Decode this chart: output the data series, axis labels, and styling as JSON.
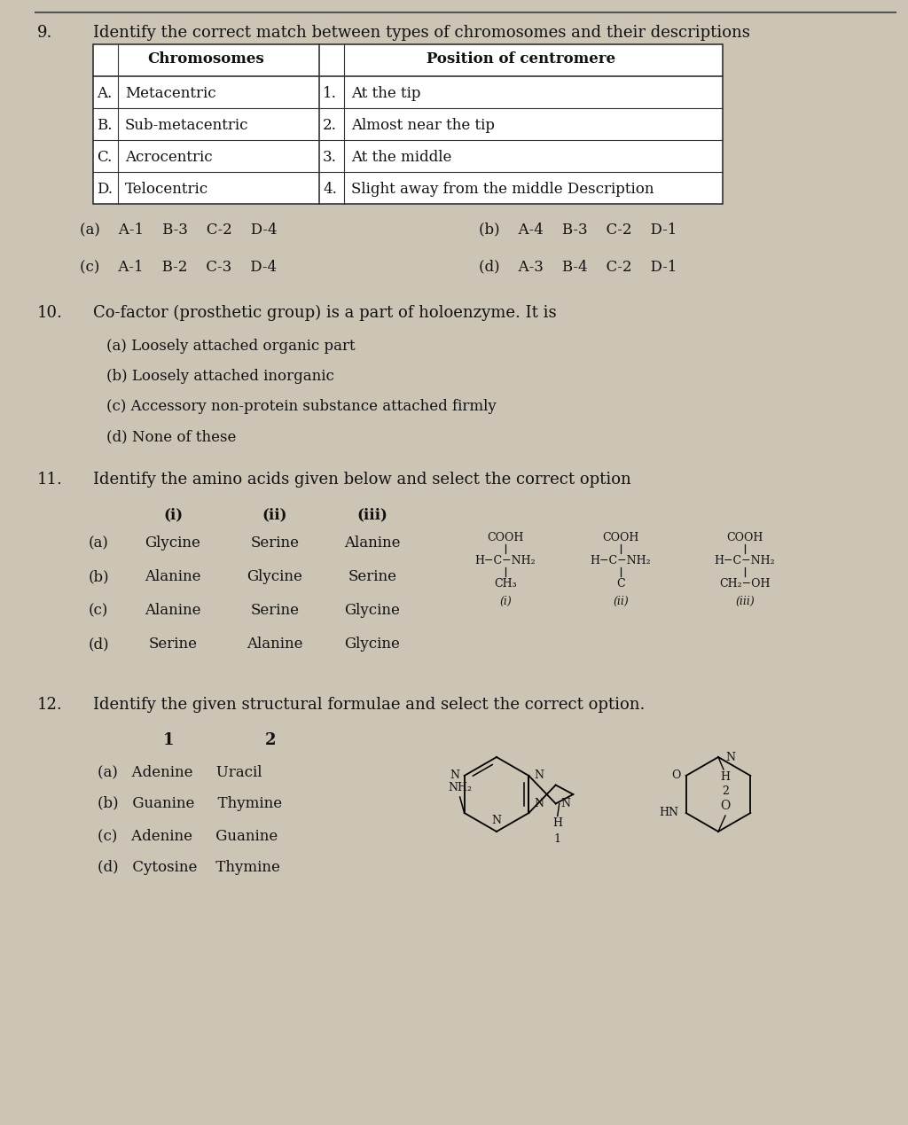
{
  "bg_color": "#ccc4b4",
  "q9_num": "9.",
  "q9_text": "Identify the correct match between types of chromosomes and their descriptions",
  "table_header_left": "Chromosomes",
  "table_header_right": "Position of centromere",
  "table_rows": [
    [
      "A.",
      "Metacentric",
      "1.",
      "At the tip"
    ],
    [
      "B.",
      "Sub-metacentric",
      "2.",
      "Almost near the tip"
    ],
    [
      "C.",
      "Acrocentric",
      "3.",
      "At the middle"
    ],
    [
      "D.",
      "Telocentric",
      "4.",
      "Slight away from the middle Description"
    ]
  ],
  "q9_opt_a": "(a)    A-1    B-3    C-2    D-4",
  "q9_opt_b": "(b)    A-4    B-3    C-2    D-1",
  "q9_opt_c": "(c)    A-1    B-2    C-3    D-4",
  "q9_opt_d": "(d)    A-3    B-4    C-2    D-1",
  "q10_num": "10.",
  "q10_text": "Co-factor (prosthetic group) is a part of holoenzyme. It is",
  "q10_a": "(a) Loosely attached organic part",
  "q10_b": "(b) Loosely attached inorganic",
  "q10_c": "(c) Accessory non-protein substance attached firmly",
  "q10_d": "(d) None of these",
  "q11_num": "11.",
  "q11_text": "Identify the amino acids given below and select the correct option",
  "q11_col_i": "(i)",
  "q11_col_ii": "(ii)",
  "q11_col_iii": "(iii)",
  "q11_a_lbl": "(a)",
  "q11_a_1": "Glycine",
  "q11_a_2": "Serine",
  "q11_a_3": "Alanine",
  "q11_b_lbl": "(b)",
  "q11_b_1": "Alanine",
  "q11_b_2": "Glycine",
  "q11_b_3": "Serine",
  "q11_c_lbl": "(c)",
  "q11_c_1": "Alanine",
  "q11_c_2": "Serine",
  "q11_c_3": "Glycine",
  "q11_d_lbl": "(d)",
  "q11_d_1": "Serine",
  "q11_d_2": "Alanine",
  "q11_d_3": "Glycine",
  "q12_num": "12.",
  "q12_text": "Identify the given structural formulae and select the correct option.",
  "q12_col_1": "1",
  "q12_col_2": "2",
  "q12_a": "(a)   Adenine     Uracil",
  "q12_b": "(b)   Guanine     Thymine",
  "q12_c": "(c)   Adenine     Guanine",
  "q12_d": "(d)   Cytosine    Thymine"
}
